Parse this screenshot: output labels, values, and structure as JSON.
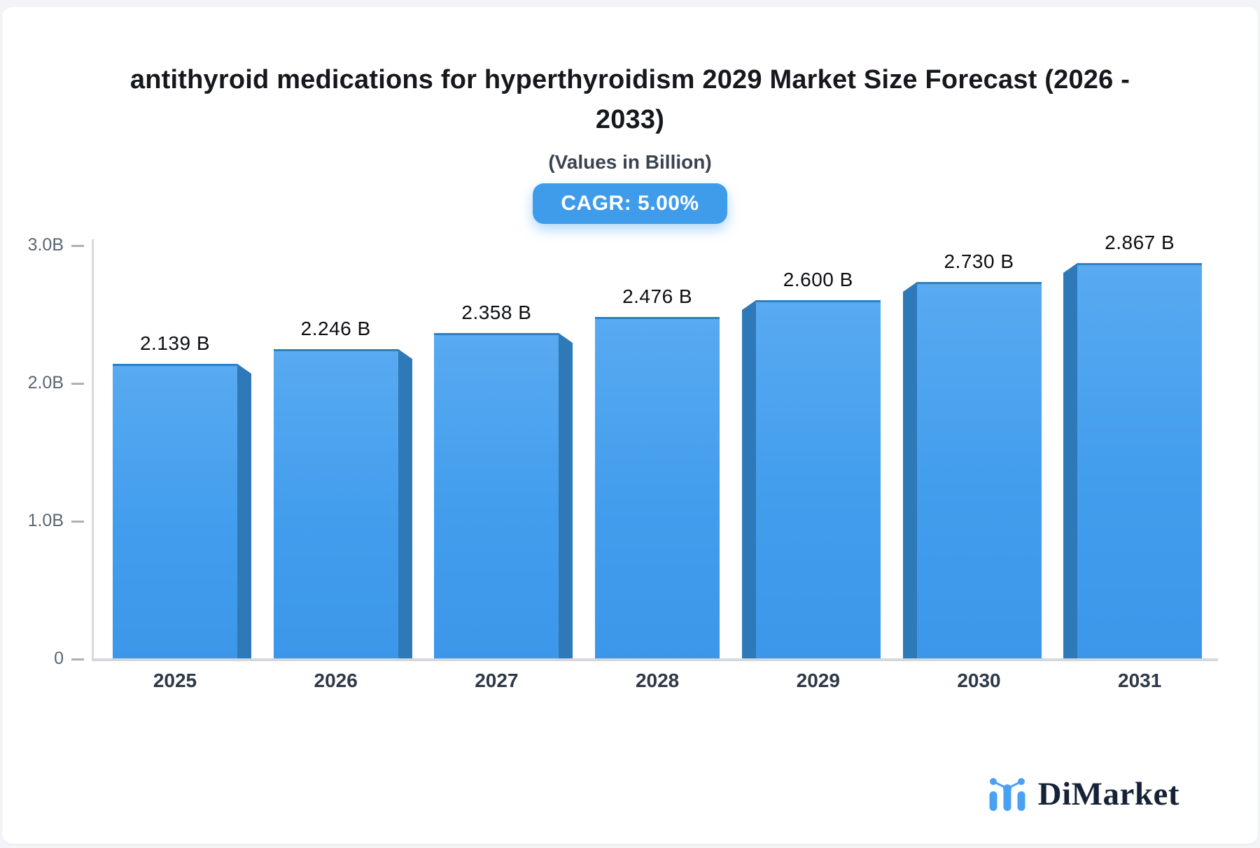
{
  "header": {
    "title": "antithyroid medications for hyperthyroidism 2029 Market Size Forecast (2026 - 2033)",
    "subtitle": "(Values in Billion)",
    "cagr_badge": "CAGR: 5.00%"
  },
  "chart_data": {
    "type": "bar",
    "title": "antithyroid medications for hyperthyroidism 2029 Market Size Forecast (2026 - 2033)",
    "subtitle": "(Values in Billion)",
    "unit": "Billion",
    "cagr": "5.00%",
    "categories": [
      "2025",
      "2026",
      "2027",
      "2028",
      "2029",
      "2030",
      "2031"
    ],
    "values": [
      2.139,
      2.246,
      2.358,
      2.476,
      2.6,
      2.73,
      2.867
    ],
    "value_labels": [
      "2.139 B",
      "2.246 B",
      "2.358 B",
      "2.476 B",
      "2.600 B",
      "2.730 B",
      "2.867 B"
    ],
    "y_ticks": [
      {
        "label": "3.0B",
        "value": 3.0
      },
      {
        "label": "2.0B",
        "value": 2.0
      },
      {
        "label": "1.0B",
        "value": 1.0
      },
      {
        "label": "0",
        "value": 0
      }
    ],
    "ylim": [
      0,
      3.0
    ],
    "xlabel": "",
    "ylabel": "",
    "grid": false,
    "legend": false,
    "style": "3d-bars-center-vanishing-point",
    "colors": {
      "bar_face": "#429ded",
      "bar_face_light": "#58aaf1",
      "bar_side": "#2e79b7",
      "bar_top_border": "#2f80c1",
      "axis_line": "#d4d8dd",
      "tick_label": "#5a6673",
      "value_label": "#0c0e11",
      "category_label": "#2e3947",
      "badge": "#3f9ceb"
    }
  },
  "branding": {
    "logo_text": "DiMarket",
    "logo_icon": "bar-chart-with-trend-dots",
    "logo_color": "#152238",
    "logo_accent": "#4aa1f2"
  }
}
